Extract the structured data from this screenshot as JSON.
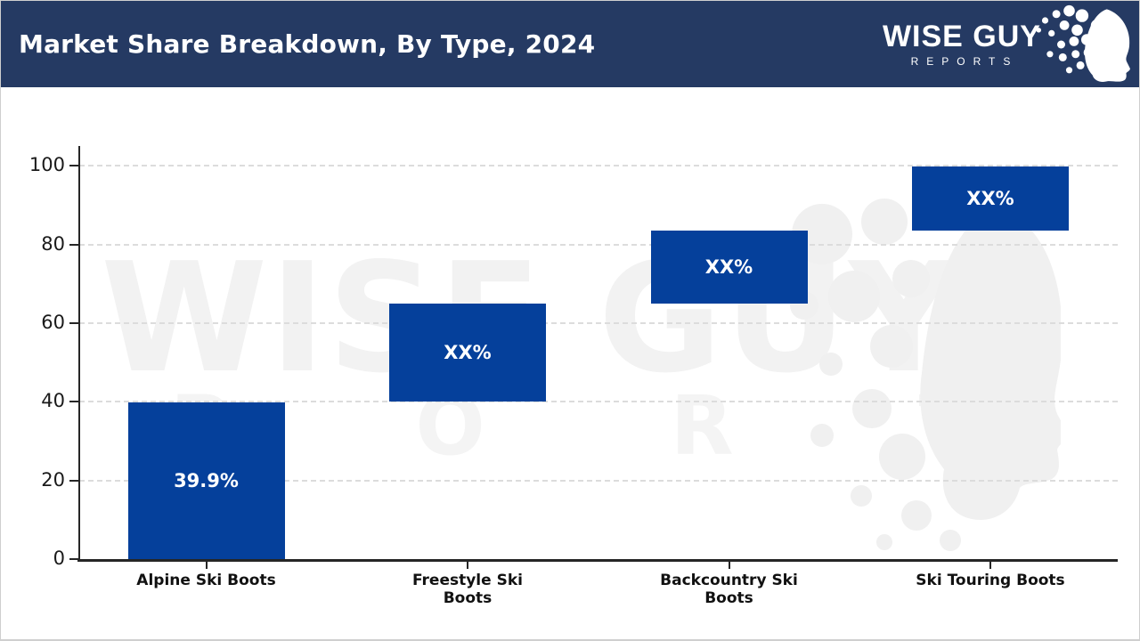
{
  "header": {
    "title": "Market Share Breakdown, By Type, 2024",
    "logo_line1": "WISE GUY",
    "logo_line2": "REPORTS"
  },
  "watermark": {
    "text_main": "WISE GUY",
    "text_sub": "P O R T S"
  },
  "chart_data": {
    "type": "bar",
    "subtype": "floating-range-bars",
    "title": "Market Share Breakdown, By Type, 2024",
    "xlabel": "",
    "ylabel": "",
    "ylim": [
      0,
      105
    ],
    "yticks": [
      0,
      20,
      40,
      60,
      80,
      100
    ],
    "grid": "horizontal-dashed",
    "legend": "none",
    "bar_color": "#05409b",
    "bar_label_color": "#ffffff",
    "axis_color": "#262626",
    "gridline_color": "#dcdcdc",
    "categories": [
      "Alpine Ski Boots",
      "Freestyle Ski\nBoots",
      "Backcountry Ski\nBoots",
      "Ski Touring Boots"
    ],
    "bars": [
      {
        "category": "Alpine Ski Boots",
        "start": 0,
        "end": 39.9,
        "label": "39.9%"
      },
      {
        "category": "Freestyle Ski Boots",
        "start": 40,
        "end": 65,
        "label": "XX%"
      },
      {
        "category": "Backcountry Ski Boots",
        "start": 65,
        "end": 83.5,
        "label": "XX%"
      },
      {
        "category": "Ski Touring Boots",
        "start": 83.5,
        "end": 99.8,
        "label": "XX%"
      }
    ]
  }
}
